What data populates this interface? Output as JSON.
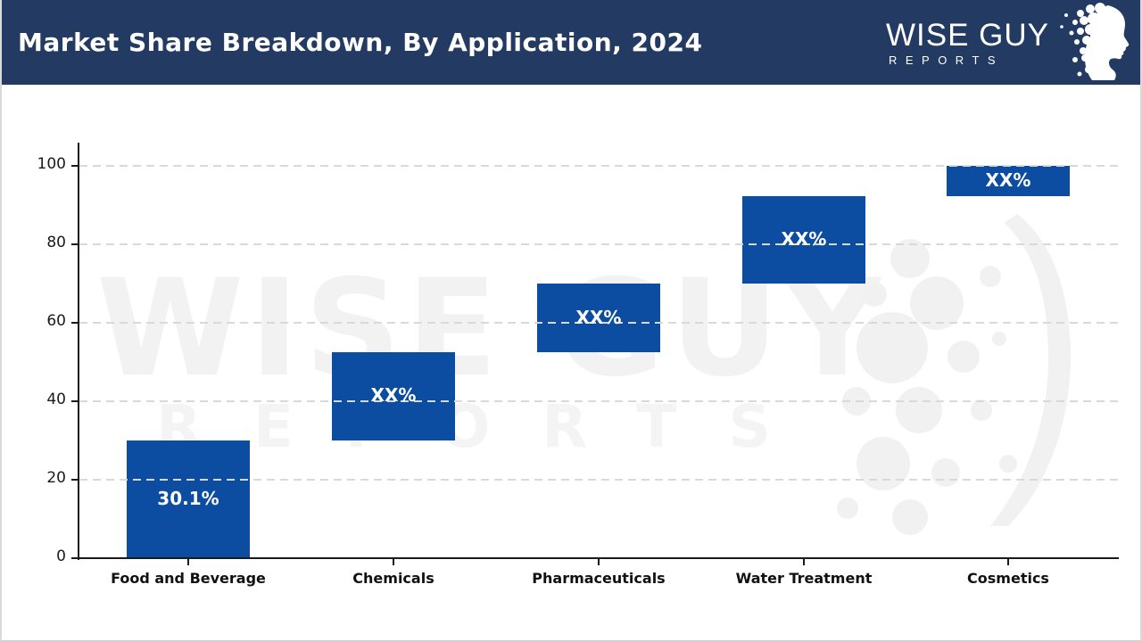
{
  "header": {
    "title": "Market Share Breakdown, By Application, 2024",
    "bg_color": "#233a63",
    "logo": {
      "line1": "WISE GUY",
      "line2": "REPORTS"
    }
  },
  "watermark": {
    "line1": "WISE GUY",
    "line2": "REPORTS"
  },
  "chart_data": {
    "type": "bar",
    "subtype": "waterfall",
    "title": "Market Share Breakdown, By Application, 2024",
    "categories": [
      "Food and Beverage",
      "Chemicals",
      "Pharmaceuticals",
      "Water Treatment",
      "Cosmetics"
    ],
    "segments": [
      {
        "category": "Food and Beverage",
        "start": 0,
        "end": 30.1,
        "label": "30.1%"
      },
      {
        "category": "Chemicals",
        "start": 30.1,
        "end": 52.6,
        "label": "XX%"
      },
      {
        "category": "Pharmaceuticals",
        "start": 52.6,
        "end": 69.9,
        "label": "XX%"
      },
      {
        "category": "Water Treatment",
        "start": 69.9,
        "end": 92.3,
        "label": "XX%"
      },
      {
        "category": "Cosmetics",
        "start": 92.3,
        "end": 100,
        "label": "XX%"
      }
    ],
    "ylim": [
      0,
      100
    ],
    "yticks": [
      0,
      20,
      40,
      60,
      80,
      100
    ],
    "grid": "dashed horizontal, drawn over bars",
    "legend": "none",
    "bar_color": "#0c4da2",
    "bar_label_color": "#ffffff",
    "axis_color": "#1a1a1a",
    "gridline_color": "#d9d9d9"
  }
}
